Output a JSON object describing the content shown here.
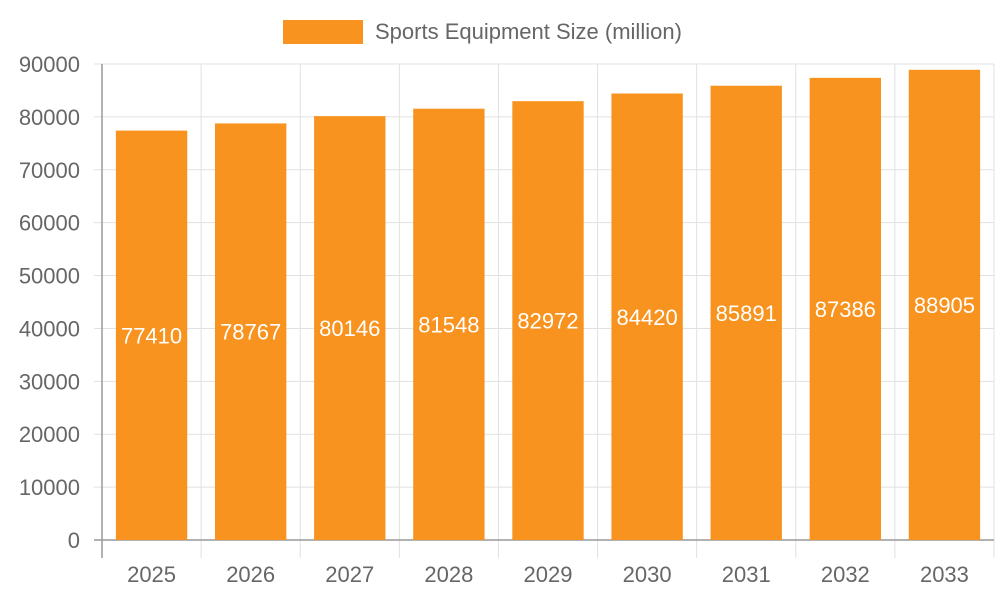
{
  "chart_data": {
    "type": "bar",
    "categories": [
      "2025",
      "2026",
      "2027",
      "2028",
      "2029",
      "2030",
      "2031",
      "2032",
      "2033"
    ],
    "series": [
      {
        "name": "Sports Equipment Size (million)",
        "values": [
          77410,
          78767,
          80146,
          81548,
          82972,
          84420,
          85891,
          87386,
          88905
        ],
        "color": "#f7931e"
      }
    ],
    "title": "",
    "xlabel": "",
    "ylabel": "",
    "ylim": [
      0,
      90000
    ],
    "yticks": [
      0,
      10000,
      20000,
      30000,
      40000,
      50000,
      60000,
      70000,
      80000,
      90000
    ],
    "grid": true,
    "legend": "top-center",
    "data_labels": true
  }
}
